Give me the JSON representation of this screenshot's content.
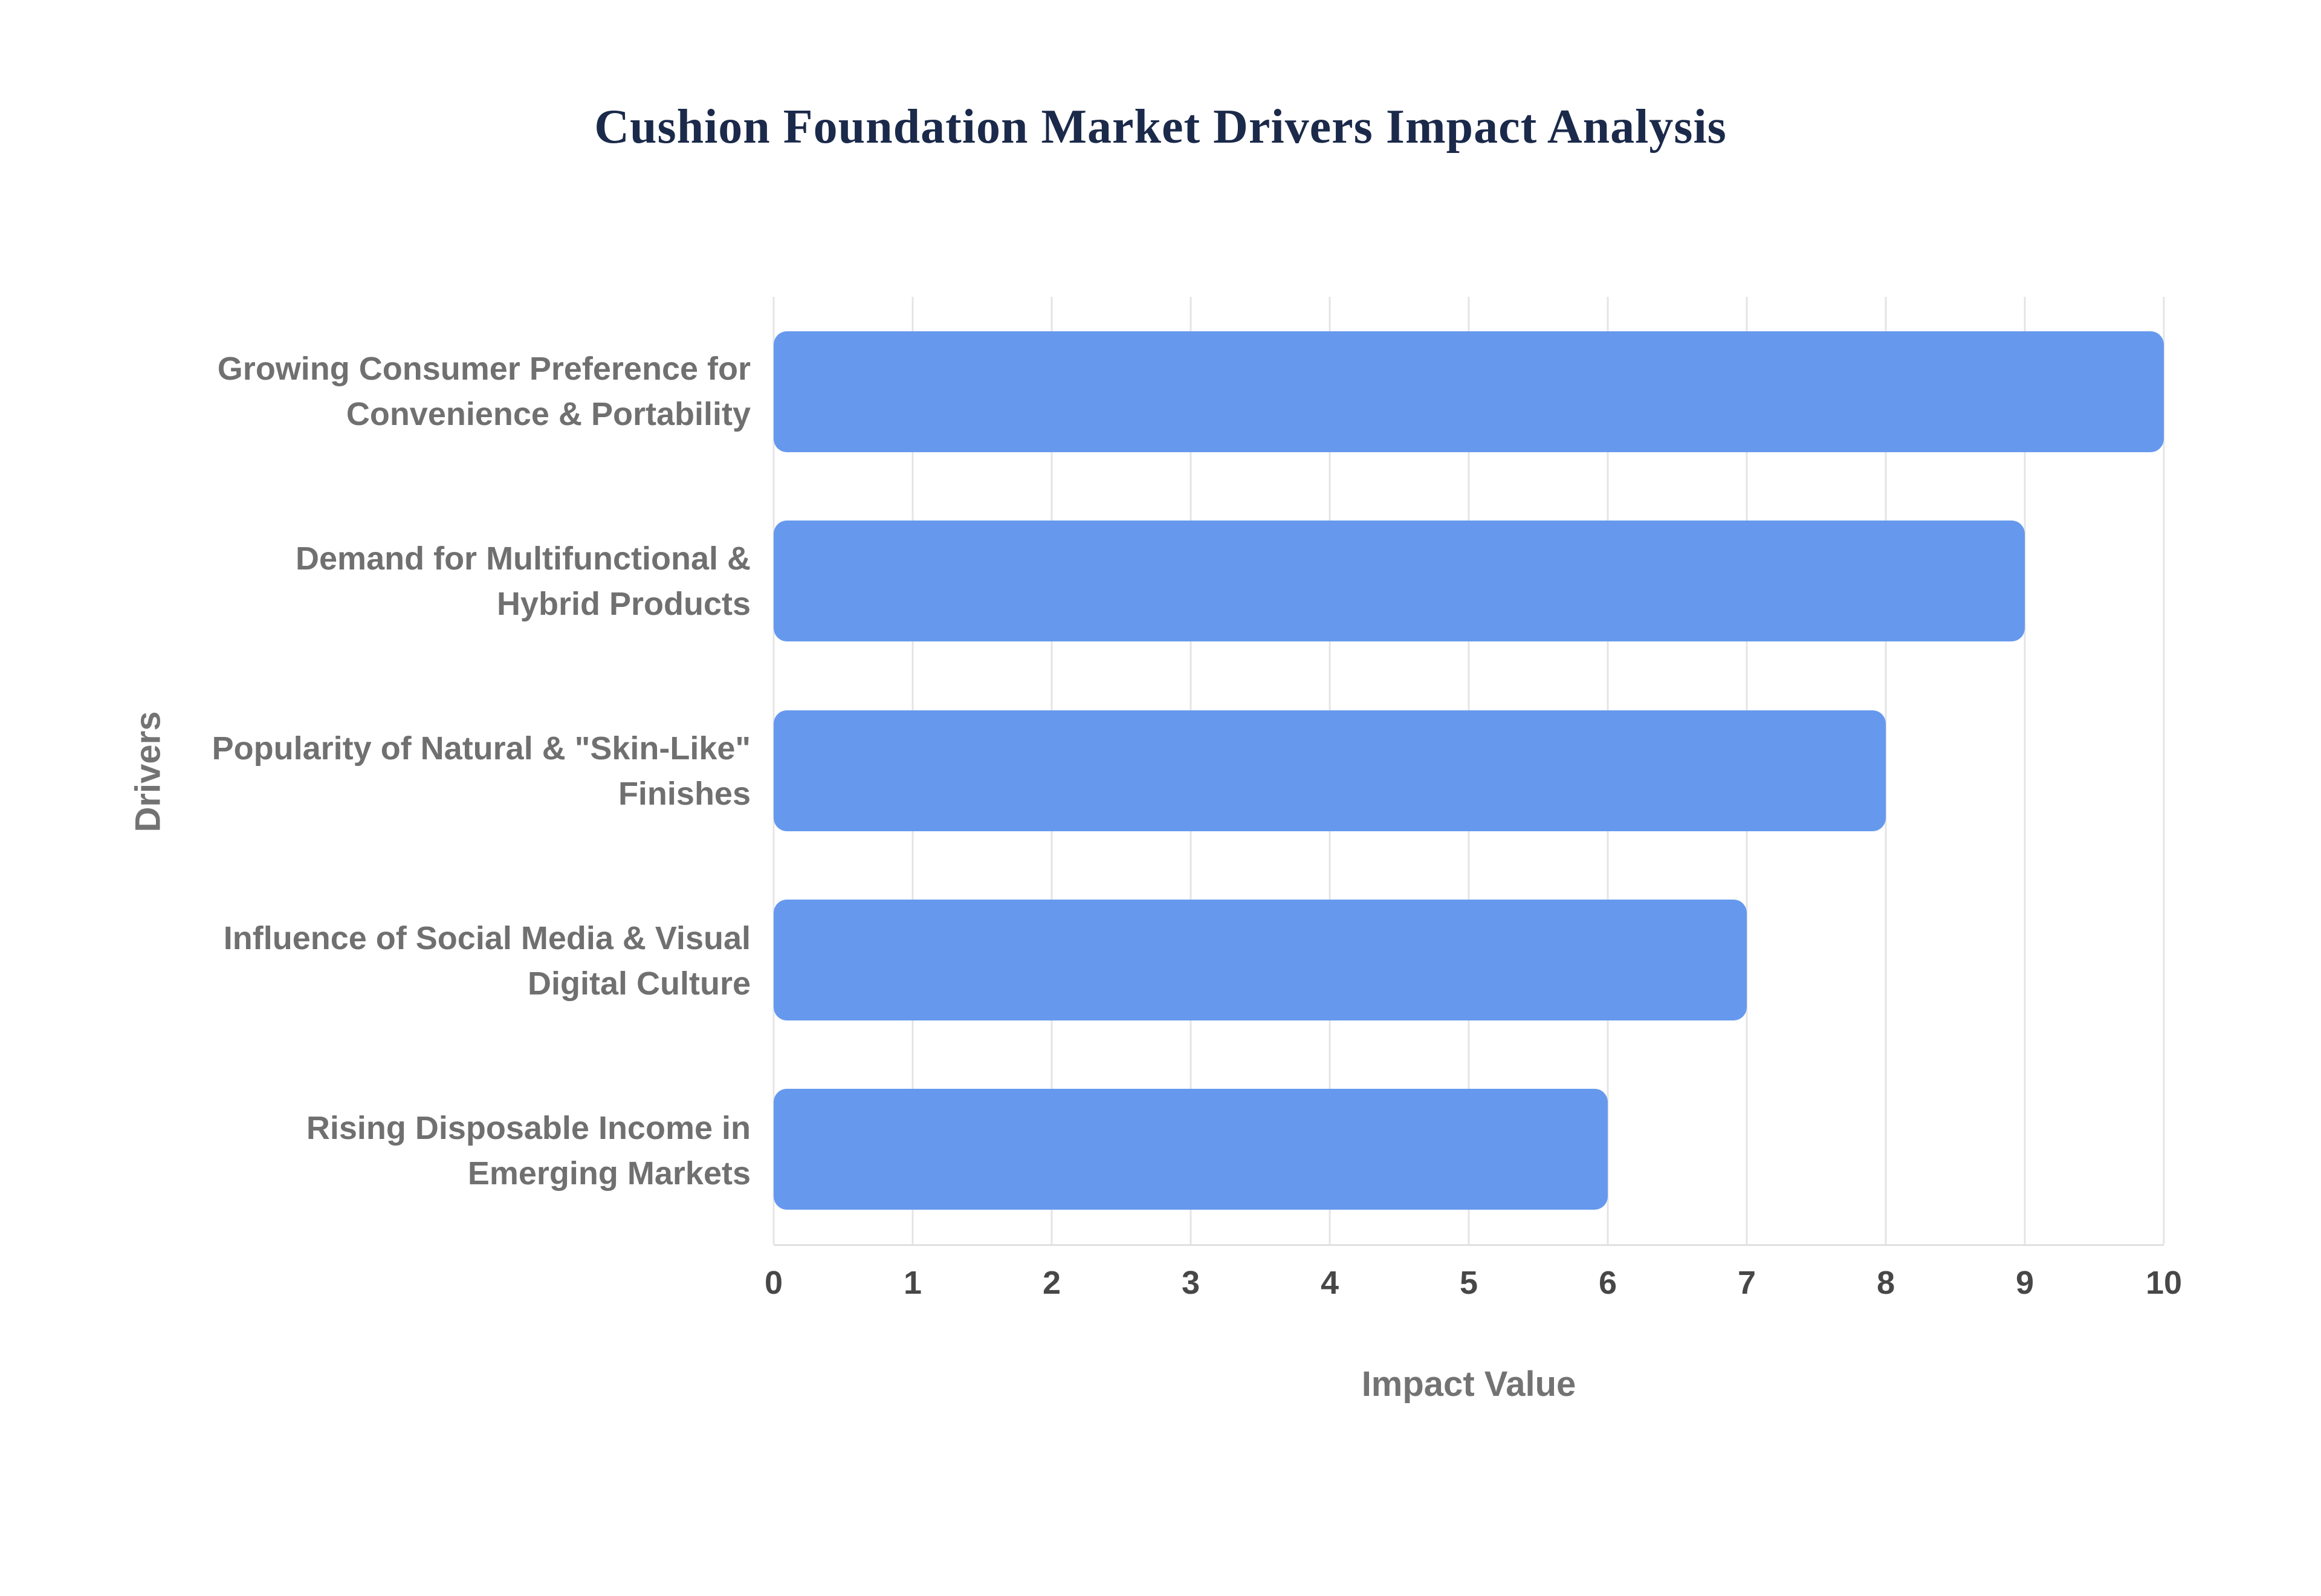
{
  "page": {
    "background": "#ffffff"
  },
  "chart_data": {
    "type": "bar",
    "orientation": "horizontal",
    "title": "Cushion Foundation Market Drivers Impact Analysis",
    "xlabel": "Impact Value",
    "ylabel": "Drivers",
    "categories": [
      "Growing Consumer Preference for Convenience & Portability",
      "Demand for Multifunctional & Hybrid Products",
      "Popularity of Natural & \"Skin-Like\" Finishes",
      "Influence of Social Media & Visual Digital Culture",
      "Rising Disposable Income in Emerging Markets"
    ],
    "values": [
      10,
      9,
      8,
      7,
      6
    ],
    "xlim": [
      0,
      10
    ],
    "xticks": [
      0,
      1,
      2,
      3,
      4,
      5,
      6,
      7,
      8,
      9,
      10
    ],
    "grid": true,
    "legend": "none",
    "bar_color": "#6699ee",
    "title_color": "#1b2a4a",
    "label_color": "#707070",
    "tick_color": "#474747",
    "axis_title_color": "#737373"
  }
}
